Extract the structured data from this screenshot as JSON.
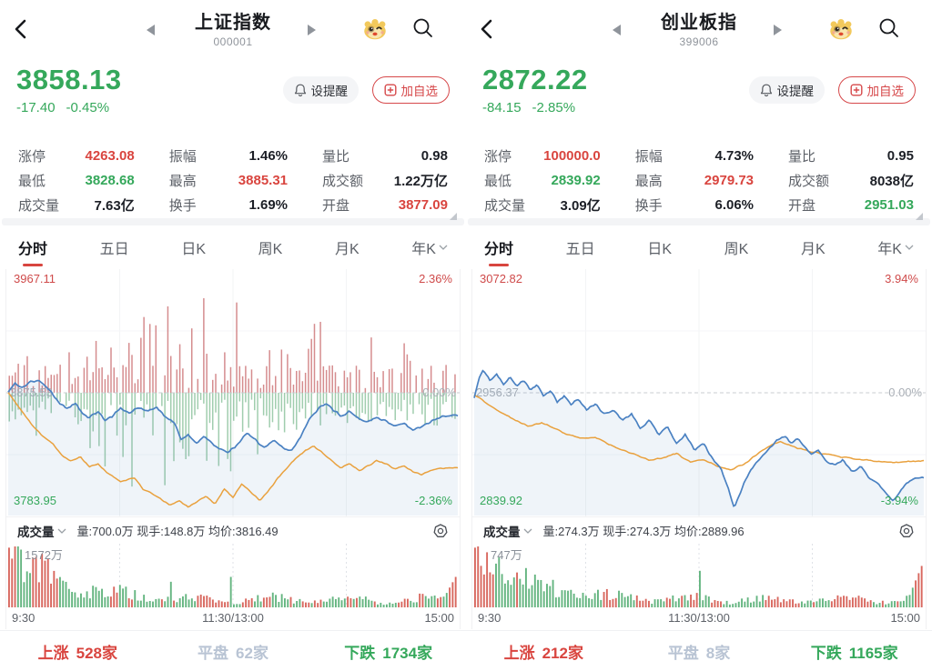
{
  "panels": [
    {
      "header": {
        "title": "上证指数",
        "code": "000001"
      },
      "price": {
        "value": "3858.13",
        "change": "-17.40",
        "change_pct": "-0.45%",
        "trend": "green"
      },
      "actions": {
        "alert_label": "设提醒",
        "watch_label": "加自选"
      },
      "stats": [
        {
          "label": "开盘",
          "value": "3877.09",
          "color": "red"
        },
        {
          "label": "换手",
          "value": "1.69%",
          "color": "dark"
        },
        {
          "label": "成交量",
          "value": "7.63亿",
          "color": "dark"
        },
        {
          "label": "成交额",
          "value": "1.22万亿",
          "color": "dark"
        },
        {
          "label": "最高",
          "value": "3885.31",
          "color": "red"
        },
        {
          "label": "最低",
          "value": "3828.68",
          "color": "green"
        },
        {
          "label": "量比",
          "value": "0.98",
          "color": "dark"
        },
        {
          "label": "振幅",
          "value": "1.46%",
          "color": "dark"
        },
        {
          "label": "涨停",
          "value": "4263.08",
          "color": "red"
        }
      ],
      "tabs": [
        {
          "label": "分时",
          "active": true
        },
        {
          "label": "五日"
        },
        {
          "label": "日K"
        },
        {
          "label": "周K"
        },
        {
          "label": "月K"
        },
        {
          "label": "年K",
          "dropdown": true
        }
      ],
      "chart": {
        "high_label": "3967.11",
        "high_pct": "2.36%",
        "low_label": "3783.95",
        "low_pct": "-2.36%",
        "prev_close_label": "3875.53",
        "zero_label": "0.00%",
        "range_pct": 2.36,
        "mid_bars": true,
        "bar_seed": 11,
        "blue": [
          [
            0,
            0.02
          ],
          [
            0.015,
            0.18
          ],
          [
            0.03,
            0.1
          ],
          [
            0.05,
            0.22
          ],
          [
            0.07,
            0.25
          ],
          [
            0.085,
            0.12
          ],
          [
            0.1,
            -0.05
          ],
          [
            0.115,
            -0.22
          ],
          [
            0.13,
            -0.32
          ],
          [
            0.15,
            -0.22
          ],
          [
            0.165,
            -0.42
          ],
          [
            0.18,
            -0.5
          ],
          [
            0.2,
            -0.38
          ],
          [
            0.215,
            -0.55
          ],
          [
            0.23,
            -0.48
          ],
          [
            0.25,
            -0.32
          ],
          [
            0.27,
            -0.4
          ],
          [
            0.29,
            -0.3
          ],
          [
            0.31,
            -0.38
          ],
          [
            0.33,
            -0.3
          ],
          [
            0.35,
            -0.48
          ],
          [
            0.37,
            -0.62
          ],
          [
            0.385,
            -0.95
          ],
          [
            0.4,
            -0.85
          ],
          [
            0.42,
            -1.02
          ],
          [
            0.435,
            -0.88
          ],
          [
            0.455,
            -1.05
          ],
          [
            0.47,
            -1.15
          ],
          [
            0.49,
            -1.21
          ],
          [
            0.51,
            -1.05
          ],
          [
            0.53,
            -0.82
          ],
          [
            0.55,
            -0.95
          ],
          [
            0.57,
            -1.12
          ],
          [
            0.59,
            -0.98
          ],
          [
            0.61,
            -1.1
          ],
          [
            0.63,
            -1.18
          ],
          [
            0.65,
            -0.9
          ],
          [
            0.67,
            -0.55
          ],
          [
            0.69,
            -0.32
          ],
          [
            0.705,
            -0.22
          ],
          [
            0.72,
            -0.32
          ],
          [
            0.74,
            -0.48
          ],
          [
            0.76,
            -0.38
          ],
          [
            0.78,
            -0.52
          ],
          [
            0.8,
            -0.6
          ],
          [
            0.82,
            -0.5
          ],
          [
            0.84,
            -0.58
          ],
          [
            0.86,
            -0.68
          ],
          [
            0.88,
            -0.62
          ],
          [
            0.9,
            -0.75
          ],
          [
            0.92,
            -0.68
          ],
          [
            0.94,
            -0.58
          ],
          [
            0.96,
            -0.5
          ],
          [
            0.98,
            -0.47
          ],
          [
            1,
            -0.45
          ]
        ],
        "orange": [
          [
            0,
            0
          ],
          [
            0.02,
            -0.25
          ],
          [
            0.04,
            -0.5
          ],
          [
            0.06,
            -0.72
          ],
          [
            0.08,
            -0.9
          ],
          [
            0.1,
            -1.05
          ],
          [
            0.12,
            -1.28
          ],
          [
            0.14,
            -1.38
          ],
          [
            0.16,
            -1.3
          ],
          [
            0.18,
            -1.5
          ],
          [
            0.2,
            -1.45
          ],
          [
            0.22,
            -1.62
          ],
          [
            0.25,
            -1.8
          ],
          [
            0.28,
            -1.72
          ],
          [
            0.3,
            -1.95
          ],
          [
            0.33,
            -2.1
          ],
          [
            0.36,
            -2.28
          ],
          [
            0.38,
            -2.18
          ],
          [
            0.4,
            -2.32
          ],
          [
            0.42,
            -2.2
          ],
          [
            0.44,
            -2.1
          ],
          [
            0.46,
            -2.26
          ],
          [
            0.48,
            -1.95
          ],
          [
            0.5,
            -2.12
          ],
          [
            0.52,
            -1.85
          ],
          [
            0.54,
            -2.02
          ],
          [
            0.56,
            -2.18
          ],
          [
            0.58,
            -1.98
          ],
          [
            0.6,
            -1.72
          ],
          [
            0.62,
            -1.52
          ],
          [
            0.64,
            -1.32
          ],
          [
            0.66,
            -1.18
          ],
          [
            0.68,
            -1.08
          ],
          [
            0.7,
            -1.22
          ],
          [
            0.72,
            -1.38
          ],
          [
            0.74,
            -1.52
          ],
          [
            0.76,
            -1.44
          ],
          [
            0.78,
            -1.58
          ],
          [
            0.8,
            -1.48
          ],
          [
            0.82,
            -1.38
          ],
          [
            0.84,
            -1.44
          ],
          [
            0.86,
            -1.54
          ],
          [
            0.88,
            -1.48
          ],
          [
            0.9,
            -1.6
          ],
          [
            0.92,
            -1.66
          ],
          [
            0.94,
            -1.58
          ],
          [
            0.96,
            -1.54
          ],
          [
            0.98,
            -1.52
          ],
          [
            1,
            -1.52
          ]
        ]
      },
      "volume": {
        "indicator": "成交量",
        "stats": "量:700.0万 现手:148.8万 均价:3816.49",
        "max_label": "1572万",
        "x_labels": [
          "9:30",
          "11:30/13:00",
          "15:00"
        ],
        "seed": 5,
        "end_spike": 0.5,
        "spikes": [
          {
            "x": 0.49,
            "h": 0.5,
            "c": "g"
          },
          {
            "x": 0.36,
            "h": 0.42,
            "c": "g"
          }
        ]
      },
      "breadth": [
        {
          "label": "上涨",
          "value": "528家",
          "color": "red"
        },
        {
          "label": "平盘",
          "value": "62家",
          "color": "pale"
        },
        {
          "label": "下跌",
          "value": "1734家",
          "color": "green"
        }
      ]
    },
    {
      "header": {
        "title": "创业板指",
        "code": "399006"
      },
      "price": {
        "value": "2872.22",
        "change": "-84.15",
        "change_pct": "-2.85%",
        "trend": "green"
      },
      "actions": {
        "alert_label": "设提醒",
        "watch_label": "加自选"
      },
      "stats": [
        {
          "label": "开盘",
          "value": "2951.03",
          "color": "green"
        },
        {
          "label": "换手",
          "value": "6.06%",
          "color": "dark"
        },
        {
          "label": "成交量",
          "value": "3.09亿",
          "color": "dark"
        },
        {
          "label": "成交额",
          "value": "8038亿",
          "color": "dark"
        },
        {
          "label": "最高",
          "value": "2979.73",
          "color": "red"
        },
        {
          "label": "最低",
          "value": "2839.92",
          "color": "green"
        },
        {
          "label": "量比",
          "value": "0.95",
          "color": "dark"
        },
        {
          "label": "振幅",
          "value": "4.73%",
          "color": "dark"
        },
        {
          "label": "涨停",
          "value": "100000.0",
          "color": "red"
        }
      ],
      "tabs": [
        {
          "label": "分时",
          "active": true
        },
        {
          "label": "五日"
        },
        {
          "label": "日K"
        },
        {
          "label": "周K"
        },
        {
          "label": "月K"
        },
        {
          "label": "年K",
          "dropdown": true
        }
      ],
      "chart": {
        "high_label": "3072.82",
        "high_pct": "3.94%",
        "low_label": "2839.92",
        "low_pct": "-3.94%",
        "prev_close_label": "2956.37",
        "zero_label": "0.00%",
        "range_pct": 3.94,
        "mid_bars": false,
        "bar_seed": 0,
        "blue": [
          [
            0,
            -0.18
          ],
          [
            0.01,
            0.45
          ],
          [
            0.02,
            0.79
          ],
          [
            0.035,
            0.4
          ],
          [
            0.05,
            0.62
          ],
          [
            0.065,
            0.3
          ],
          [
            0.08,
            0.52
          ],
          [
            0.095,
            0.22
          ],
          [
            0.11,
            0.42
          ],
          [
            0.125,
            0.1
          ],
          [
            0.14,
            0.3
          ],
          [
            0.155,
            -0.12
          ],
          [
            0.17,
            0.08
          ],
          [
            0.185,
            -0.3
          ],
          [
            0.2,
            -0.1
          ],
          [
            0.215,
            -0.42
          ],
          [
            0.23,
            -0.22
          ],
          [
            0.25,
            -0.55
          ],
          [
            0.27,
            -0.35
          ],
          [
            0.29,
            -0.75
          ],
          [
            0.31,
            -0.55
          ],
          [
            0.33,
            -0.95
          ],
          [
            0.35,
            -0.72
          ],
          [
            0.37,
            -1.2
          ],
          [
            0.39,
            -0.95
          ],
          [
            0.41,
            -1.42
          ],
          [
            0.43,
            -1.15
          ],
          [
            0.45,
            -1.7
          ],
          [
            0.47,
            -1.42
          ],
          [
            0.49,
            -1.95
          ],
          [
            0.51,
            -1.7
          ],
          [
            0.53,
            -2.25
          ],
          [
            0.55,
            -2.6
          ],
          [
            0.565,
            -3.2
          ],
          [
            0.578,
            -3.88
          ],
          [
            0.59,
            -3.45
          ],
          [
            0.6,
            -3.05
          ],
          [
            0.615,
            -2.62
          ],
          [
            0.63,
            -2.3
          ],
          [
            0.645,
            -2.05
          ],
          [
            0.66,
            -1.85
          ],
          [
            0.675,
            -1.6
          ],
          [
            0.69,
            -1.45
          ],
          [
            0.705,
            -1.7
          ],
          [
            0.72,
            -1.55
          ],
          [
            0.735,
            -1.85
          ],
          [
            0.75,
            -2.1
          ],
          [
            0.765,
            -1.95
          ],
          [
            0.78,
            -2.25
          ],
          [
            0.8,
            -2.45
          ],
          [
            0.82,
            -2.3
          ],
          [
            0.84,
            -2.65
          ],
          [
            0.86,
            -2.5
          ],
          [
            0.88,
            -2.9
          ],
          [
            0.9,
            -3.1
          ],
          [
            0.915,
            -3.35
          ],
          [
            0.93,
            -3.7
          ],
          [
            0.945,
            -3.4
          ],
          [
            0.96,
            -3.1
          ],
          [
            0.975,
            -2.95
          ],
          [
            1,
            -2.85
          ]
        ],
        "orange": [
          [
            0,
            -0.05
          ],
          [
            0.03,
            -0.38
          ],
          [
            0.06,
            -0.66
          ],
          [
            0.09,
            -0.92
          ],
          [
            0.12,
            -1.12
          ],
          [
            0.15,
            -1.02
          ],
          [
            0.18,
            -1.22
          ],
          [
            0.21,
            -1.42
          ],
          [
            0.24,
            -1.55
          ],
          [
            0.27,
            -1.5
          ],
          [
            0.3,
            -1.75
          ],
          [
            0.33,
            -1.95
          ],
          [
            0.36,
            -2.1
          ],
          [
            0.39,
            -2.28
          ],
          [
            0.42,
            -2.2
          ],
          [
            0.45,
            -2.05
          ],
          [
            0.48,
            -2.35
          ],
          [
            0.51,
            -2.25
          ],
          [
            0.54,
            -2.5
          ],
          [
            0.57,
            -2.6
          ],
          [
            0.6,
            -2.42
          ],
          [
            0.62,
            -2.18
          ],
          [
            0.64,
            -1.95
          ],
          [
            0.66,
            -1.78
          ],
          [
            0.68,
            -1.65
          ],
          [
            0.7,
            -1.75
          ],
          [
            0.72,
            -1.88
          ],
          [
            0.75,
            -2.0
          ],
          [
            0.78,
            -2.08
          ],
          [
            0.81,
            -2.15
          ],
          [
            0.84,
            -2.22
          ],
          [
            0.87,
            -2.28
          ],
          [
            0.9,
            -2.33
          ],
          [
            0.93,
            -2.36
          ],
          [
            0.96,
            -2.34
          ],
          [
            1,
            -2.3
          ]
        ]
      },
      "volume": {
        "indicator": "成交量",
        "stats": "量:274.3万 现手:274.3万 均价:2889.96",
        "max_label": "747万",
        "x_labels": [
          "9:30",
          "11:30/13:00",
          "15:00"
        ],
        "seed": 9,
        "end_spike": 0.68,
        "spikes": [
          {
            "x": 0.5,
            "h": 0.6,
            "c": "g"
          }
        ]
      },
      "breadth": [
        {
          "label": "上涨",
          "value": "212家",
          "color": "red"
        },
        {
          "label": "平盘",
          "value": "8家",
          "color": "pale"
        },
        {
          "label": "下跌",
          "value": "1165家",
          "color": "green"
        }
      ]
    }
  ]
}
